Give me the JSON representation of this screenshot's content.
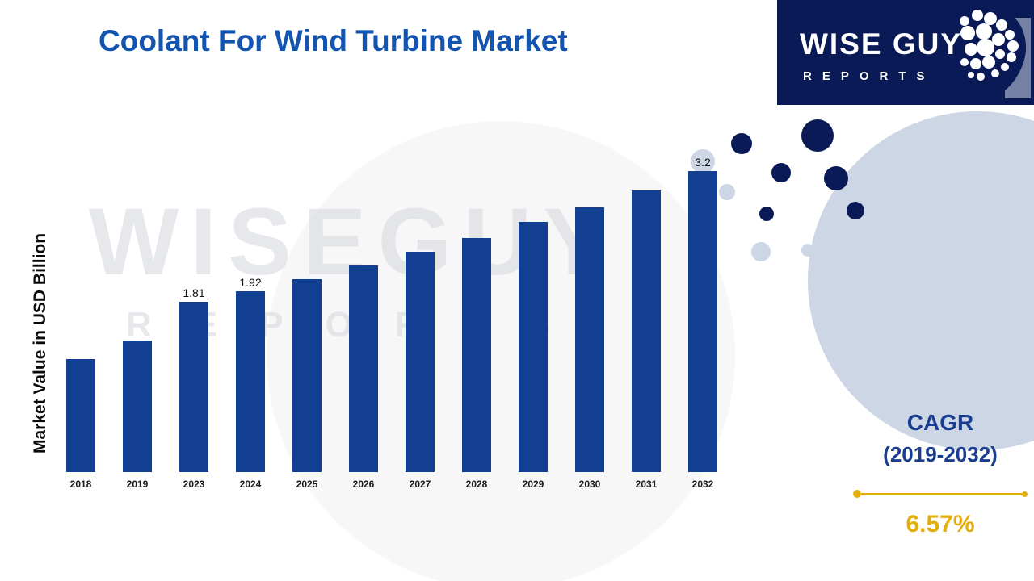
{
  "page": {
    "title_text": "Coolant For Wind Turbine Market"
  },
  "logo": {
    "name": "WISE GUY",
    "reports": "REPORTS"
  },
  "watermark": {
    "line1": "WISEGUY",
    "line2": "REPORTS"
  },
  "chart_data": {
    "type": "bar",
    "title": "Coolant For Wind Turbine Market",
    "xlabel": "",
    "ylabel": "Market Value in USD Billion",
    "categories": [
      "2018",
      "2019",
      "2023",
      "2024",
      "2025",
      "2026",
      "2027",
      "2028",
      "2029",
      "2030",
      "2031",
      "2032"
    ],
    "values": [
      1.2,
      1.4,
      1.81,
      1.92,
      2.05,
      2.2,
      2.34,
      2.49,
      2.66,
      2.82,
      3.0,
      3.2
    ],
    "bar_labels": [
      "",
      "",
      "1.81",
      "1.92",
      "",
      "",
      "",
      "",
      "",
      "",
      "",
      "3.2"
    ],
    "ylim": [
      0,
      3.4
    ],
    "grid": false,
    "legend": false
  },
  "cagr": {
    "label": "CAGR",
    "range": "(2019-2032)",
    "value": "6.57%"
  },
  "colors": {
    "title_blue": "#1254b0",
    "bar_blue": "#123f92",
    "navy": "#0a1a56",
    "gold": "#e4ae0a",
    "cagr_blue": "#1a3e8f",
    "blob": "#ccd6e5",
    "watermark_gray": "#d3d7dc"
  }
}
